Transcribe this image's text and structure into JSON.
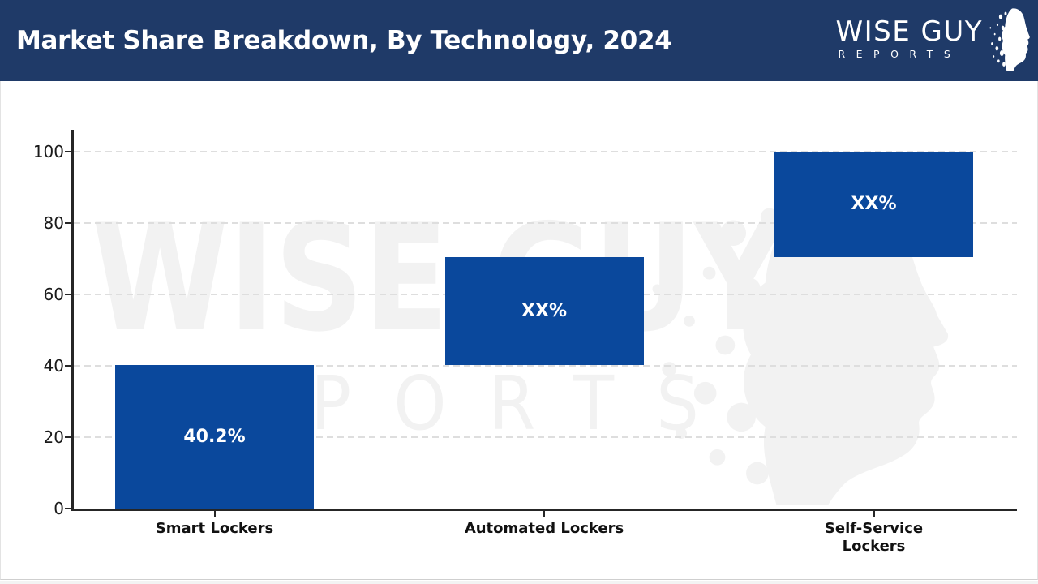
{
  "header": {
    "title": "Market Share Breakdown, By Technology, 2024",
    "logo": {
      "wordmark": "WISE GUY",
      "subtext": "REPORTS"
    }
  },
  "watermark": {
    "line1": "WISE GUY",
    "line2": "REPORTS"
  },
  "chart_data": {
    "type": "bar",
    "subtype": "waterfall-segments",
    "title": "Market Share Breakdown, By Technology, 2024",
    "categories": [
      "Smart Lockers",
      "Automated Lockers",
      "Self-Service\nLockers"
    ],
    "bars": [
      {
        "category": "Smart Lockers",
        "start": 0,
        "end": 40.2,
        "value_label": "40.2%"
      },
      {
        "category": "Automated Lockers",
        "start": 40.2,
        "end": 70.5,
        "value_label": "XX%"
      },
      {
        "category": "Self-Service Lockers",
        "start": 70.5,
        "end": 100,
        "value_label": "XX%"
      }
    ],
    "yticks": [
      0,
      20,
      40,
      60,
      80,
      100
    ],
    "ylim": [
      0,
      105
    ],
    "xlabel": "",
    "ylabel": "",
    "grid": "horizontal-dashed",
    "legend": "none",
    "bar_color": "#0a489c",
    "bar_label_color": "#ffffff"
  },
  "colors": {
    "header_bg": "#1f3a68",
    "bar": "#0a489c",
    "watermark": "#f2f2f2",
    "grid": "#dedede",
    "axis": "#262626",
    "title_text": "#ffffff"
  }
}
